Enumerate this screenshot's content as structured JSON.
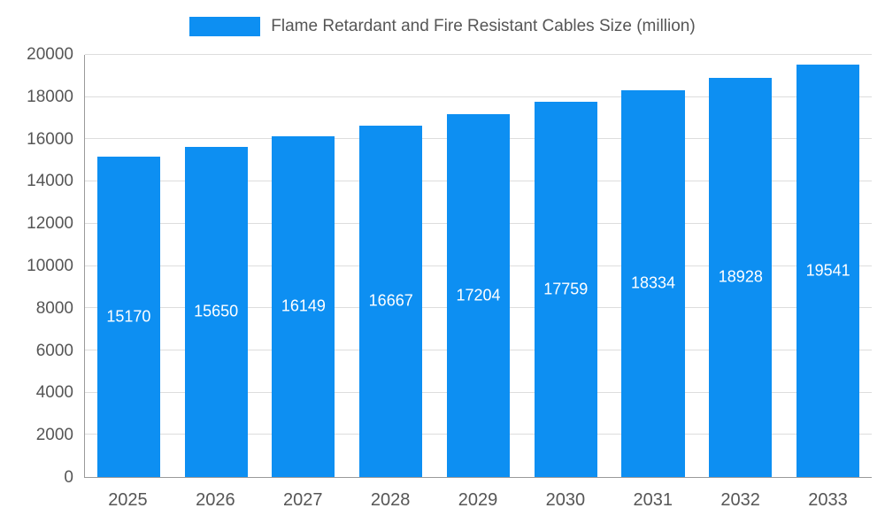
{
  "legend": {
    "label": "Flame Retardant and Fire Resistant Cables Size (million)",
    "swatch_color": "#0d8ff2"
  },
  "chart_data": {
    "type": "bar",
    "title": "Flame Retardant and Fire Resistant Cables Size (million)",
    "categories": [
      "2025",
      "2026",
      "2027",
      "2028",
      "2029",
      "2030",
      "2031",
      "2032",
      "2033"
    ],
    "values": [
      15170,
      15650,
      16149,
      16667,
      17204,
      17759,
      18334,
      18928,
      19541
    ],
    "xlabel": "",
    "ylabel": "",
    "ylim": [
      0,
      20000
    ],
    "ytick_step": 2000,
    "ytick_labels": [
      "0",
      "2000",
      "4000",
      "6000",
      "8000",
      "10000",
      "12000",
      "14000",
      "16000",
      "18000",
      "20000"
    ],
    "bar_color": "#0d8ff2",
    "value_label_color": "#ffffff",
    "grid": true,
    "legend_position": "top"
  }
}
